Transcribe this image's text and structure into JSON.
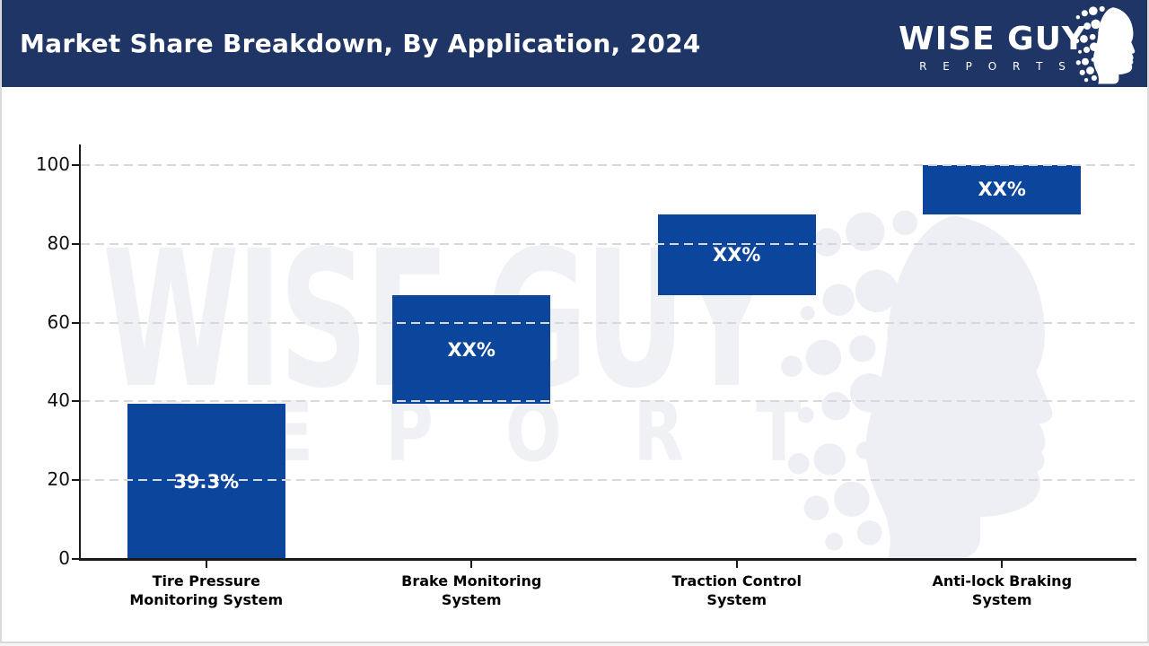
{
  "page": {
    "background": "#ffffff",
    "edge_border_color": "#d9d9d9"
  },
  "header": {
    "background": "#1f3566",
    "title": "Market Share Breakdown, By Application, 2024",
    "logo": {
      "name": "WISE GUY",
      "tagline": "R E P O R T S"
    }
  },
  "watermark": {
    "line1": "WISE GUY",
    "line2": "R E P O R T S"
  },
  "chart_data": {
    "type": "bar",
    "subtype": "floating-segment waterfall (cumulative market share)",
    "title": "Market Share Breakdown, By Application, 2024",
    "categories": [
      "Tire Pressure Monitoring System",
      "Brake Monitoring System",
      "Traction Control System",
      "Anti-lock Braking System"
    ],
    "category_label_lines": [
      [
        "Tire Pressure",
        "Monitoring System"
      ],
      [
        "Brake Monitoring",
        "System"
      ],
      [
        "Traction Control",
        "System"
      ],
      [
        "Anti-lock Braking",
        "System"
      ]
    ],
    "series": [
      {
        "name": "Market share (%)",
        "segments": [
          {
            "category": "Tire Pressure Monitoring System",
            "start": 0,
            "end": 39.3,
            "label": "39.3%"
          },
          {
            "category": "Brake Monitoring System",
            "start": 39.3,
            "end": 67,
            "label": "XX%"
          },
          {
            "category": "Traction Control System",
            "start": 67,
            "end": 87.5,
            "label": "XX%"
          },
          {
            "category": "Anti-lock Braking System",
            "start": 87.5,
            "end": 100,
            "label": "XX%"
          }
        ]
      }
    ],
    "bar_color": "#0c459c",
    "bar_label_color": "#ffffff",
    "yticks": [
      0,
      20,
      40,
      60,
      80,
      100
    ],
    "ylim": [
      0,
      105
    ],
    "xlabel": "",
    "ylabel": "",
    "grid": "horizontal-dashed",
    "grid_color": "#d8d8d8",
    "legend": "none"
  }
}
